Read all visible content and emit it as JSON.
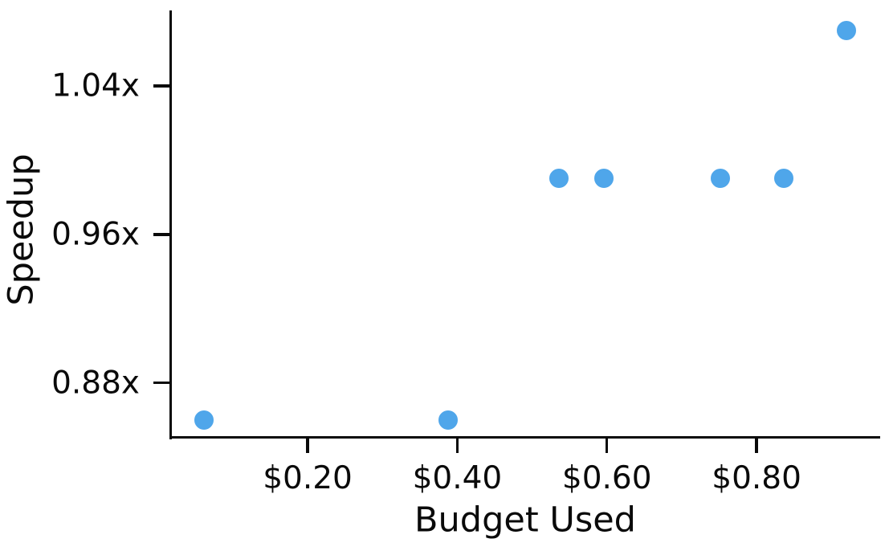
{
  "chart_data": {
    "type": "scatter",
    "title": "",
    "xlabel": "Budget Used",
    "ylabel": "Speedup",
    "x_ticks": [
      {
        "value": 0.2,
        "label": "$0.20"
      },
      {
        "value": 0.4,
        "label": "$0.40"
      },
      {
        "value": 0.6,
        "label": "$0.60"
      },
      {
        "value": 0.8,
        "label": "$0.80"
      }
    ],
    "y_ticks": [
      {
        "value": 0.88,
        "label": "0.88x"
      },
      {
        "value": 0.96,
        "label": "0.96x"
      },
      {
        "value": 1.04,
        "label": "1.04x"
      }
    ],
    "xlim": [
      0.0164,
      0.9652
    ],
    "ylim": [
      0.8508,
      1.0807
    ],
    "grid": false,
    "legend": false,
    "marker_color": "#4fa6ea",
    "marker_edge_color": "#ffffff",
    "points": [
      {
        "x": 0.061,
        "y": 0.86
      },
      {
        "x": 0.388,
        "y": 0.86
      },
      {
        "x": 0.536,
        "y": 0.99
      },
      {
        "x": 0.596,
        "y": 0.99
      },
      {
        "x": 0.752,
        "y": 0.99
      },
      {
        "x": 0.836,
        "y": 0.99
      },
      {
        "x": 0.92,
        "y": 1.07
      }
    ]
  }
}
